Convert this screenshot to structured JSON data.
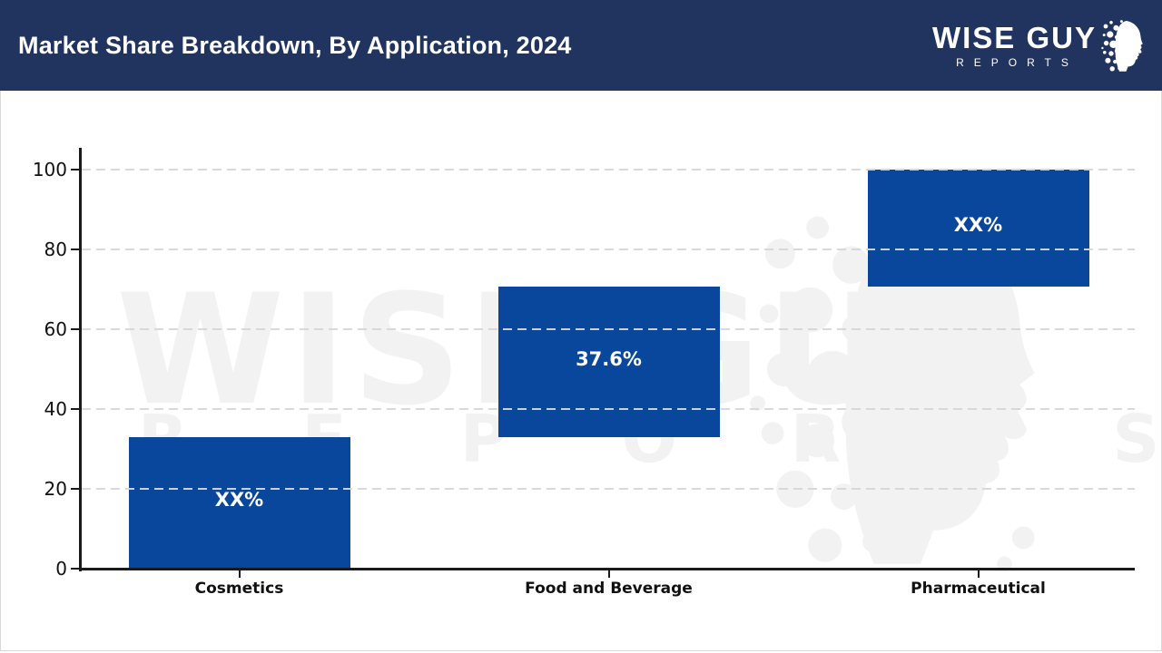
{
  "header": {
    "title": "Market Share Breakdown, By Application, 2024",
    "logo": {
      "line1": "WISE GUY",
      "line2": "REPORTS"
    }
  },
  "watermark": {
    "line1": "WISE GUY",
    "line2": "R E P O R T S"
  },
  "colors": {
    "header_bg": "#21345f",
    "bar": "#09479d",
    "grid": "#d7d7d7",
    "axis": "#1a1a1a",
    "bar_label": "#ffffff",
    "watermark": "#f2f2f2"
  },
  "chart_data": {
    "type": "bar",
    "variant": "floating-waterfall",
    "title": "Market Share Breakdown, By Application, 2024",
    "categories": [
      "Cosmetics",
      "Food and Beverage",
      "Pharmaceutical"
    ],
    "segments": [
      {
        "category": "Cosmetics",
        "start": 0,
        "end": 33,
        "label": "XX%"
      },
      {
        "category": "Food and Beverage",
        "start": 33,
        "end": 70.6,
        "label": "37.6%",
        "value": 37.6
      },
      {
        "category": "Pharmaceutical",
        "start": 70.6,
        "end": 100,
        "label": "XX%"
      }
    ],
    "ylim": [
      0,
      100
    ],
    "yticks": [
      0,
      20,
      40,
      60,
      80,
      100
    ],
    "grid": {
      "axis": "y",
      "style": "dashed",
      "drawn_over_bars": true
    },
    "legend": null
  }
}
